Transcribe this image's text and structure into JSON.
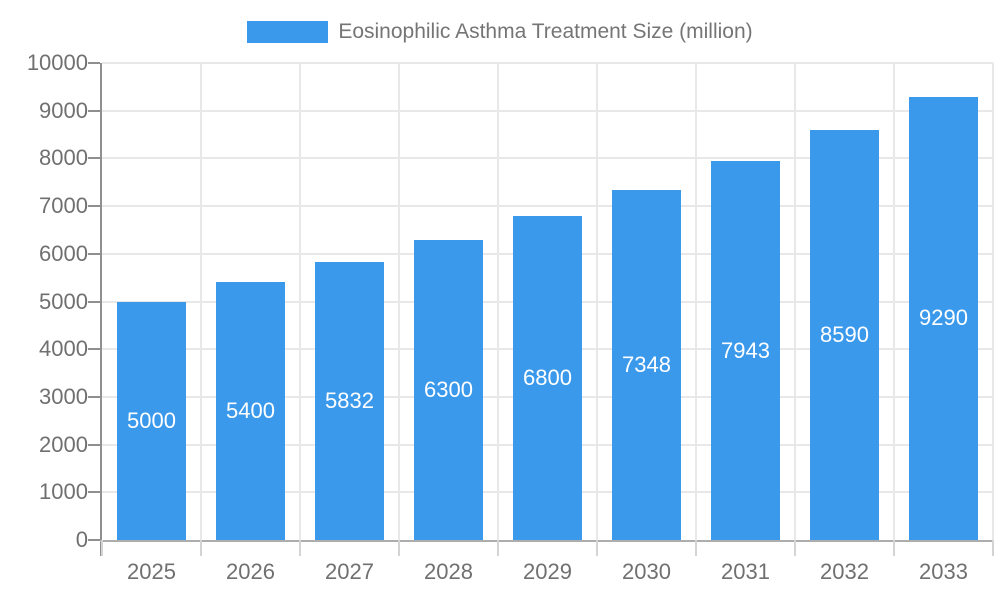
{
  "legend": {
    "label": "Eosinophilic Asthma Treatment Size (million)"
  },
  "colors": {
    "bar": "#3B99EC",
    "grid": "#E8E8E8",
    "y_axis_line": "#8F8F8F",
    "x_axis_line": "#ADADAD",
    "y_tick": "#8F8F8F",
    "x_tick": "#D4D4D4",
    "axis_label_text": "#707070",
    "legend_text": "#757575",
    "value_text": "#FFFFFF",
    "background": "#FFFFFF"
  },
  "chart_data": {
    "type": "bar",
    "categories": [
      "2025",
      "2026",
      "2027",
      "2028",
      "2029",
      "2030",
      "2031",
      "2032",
      "2033"
    ],
    "values": [
      5000,
      5400,
      5832,
      6300,
      6800,
      7348,
      7943,
      8590,
      9290
    ],
    "series_name": "Eosinophilic Asthma Treatment Size (million)",
    "title": "",
    "xlabel": "",
    "ylabel": "",
    "ylim": [
      0,
      10000
    ],
    "yticks": [
      0,
      1000,
      2000,
      3000,
      4000,
      5000,
      6000,
      7000,
      8000,
      9000,
      10000
    ],
    "grid": "horizontal and vertical light gray gridlines",
    "legend_position": "top-center",
    "value_labels": "white, centered inside bars"
  }
}
